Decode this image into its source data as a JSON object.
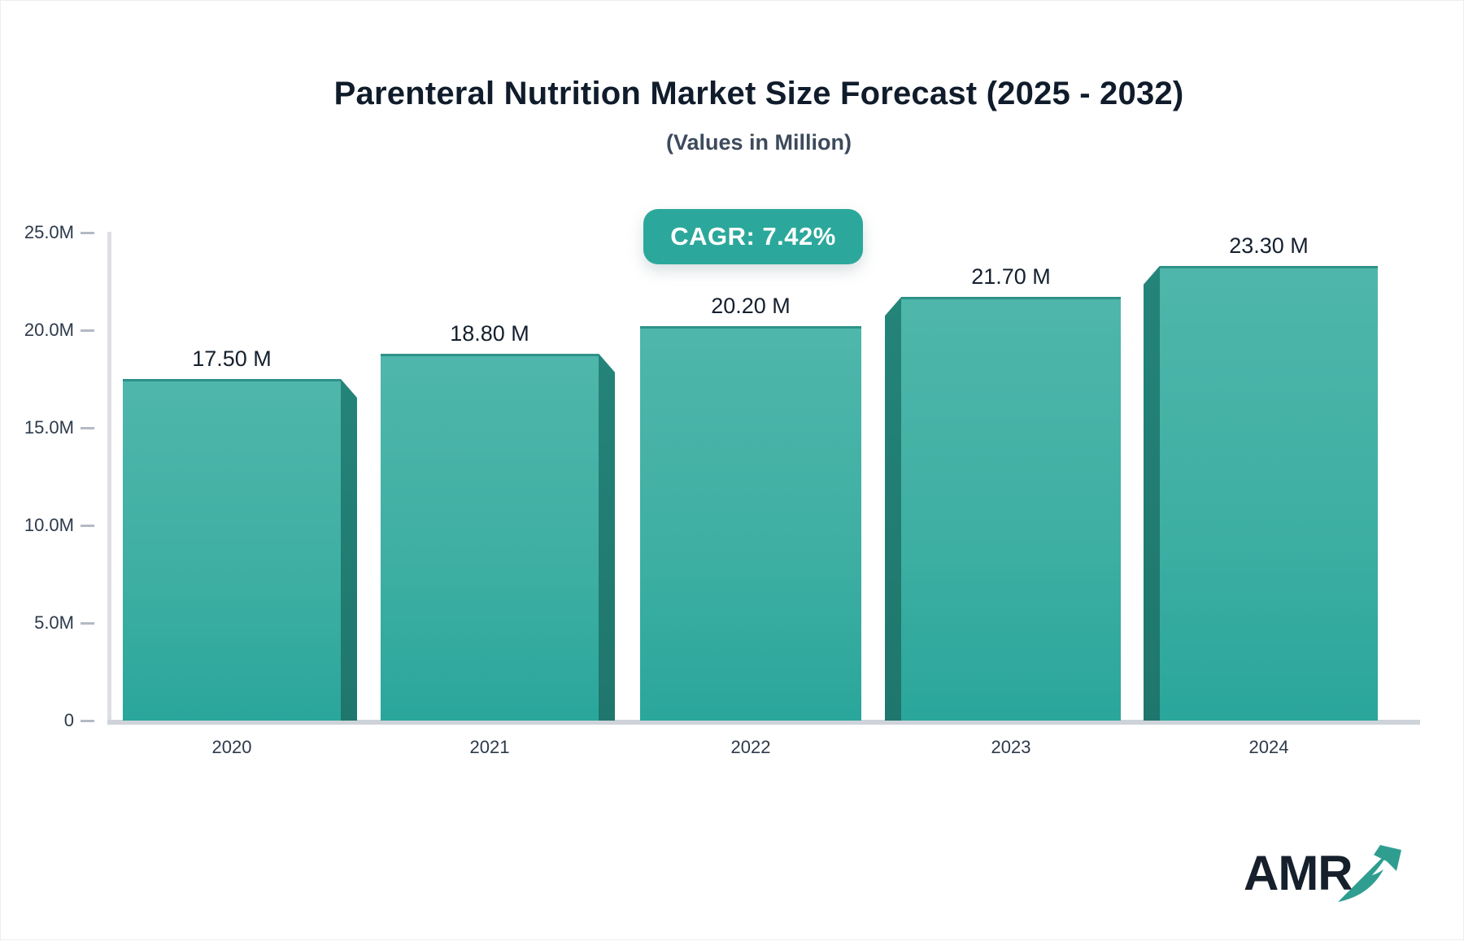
{
  "header": {
    "title": "Parenteral Nutrition Market Size Forecast (2025 - 2032)",
    "subtitle": "(Values in Million)"
  },
  "badge": {
    "label": "CAGR: 7.42%",
    "color": "#2ba89b"
  },
  "chart_data": {
    "type": "bar",
    "categories": [
      "2020",
      "2021",
      "2022",
      "2023",
      "2024"
    ],
    "values": [
      17.5,
      18.8,
      20.2,
      21.7,
      23.3
    ],
    "value_labels": [
      "17.50 M",
      "18.80 M",
      "20.20 M",
      "21.70 M",
      "23.30 M"
    ],
    "title": "Parenteral Nutrition Market Size Forecast (2025 - 2032)",
    "subtitle": "(Values in Million)",
    "xlabel": "",
    "ylabel": "",
    "ylim": [
      0,
      25
    ],
    "y_ticks": [
      {
        "value": 25,
        "label": "25.0M"
      },
      {
        "value": 20,
        "label": "20.0M"
      },
      {
        "value": 15,
        "label": "15.0M"
      },
      {
        "value": 10,
        "label": "10.0M"
      },
      {
        "value": 5,
        "label": "5.0M"
      },
      {
        "value": 0,
        "label": "0"
      }
    ],
    "grid": false,
    "legend": false,
    "annotation": "CAGR: 7.42%",
    "bar_color_top": "#4fb6ab",
    "bar_color_bottom": "#2aa69b",
    "bar_side_color": "#1f766c"
  },
  "logo": {
    "text": "AMR",
    "arrow_icon": "growth-arrow-icon",
    "arrow_color": "#2f9e90"
  }
}
